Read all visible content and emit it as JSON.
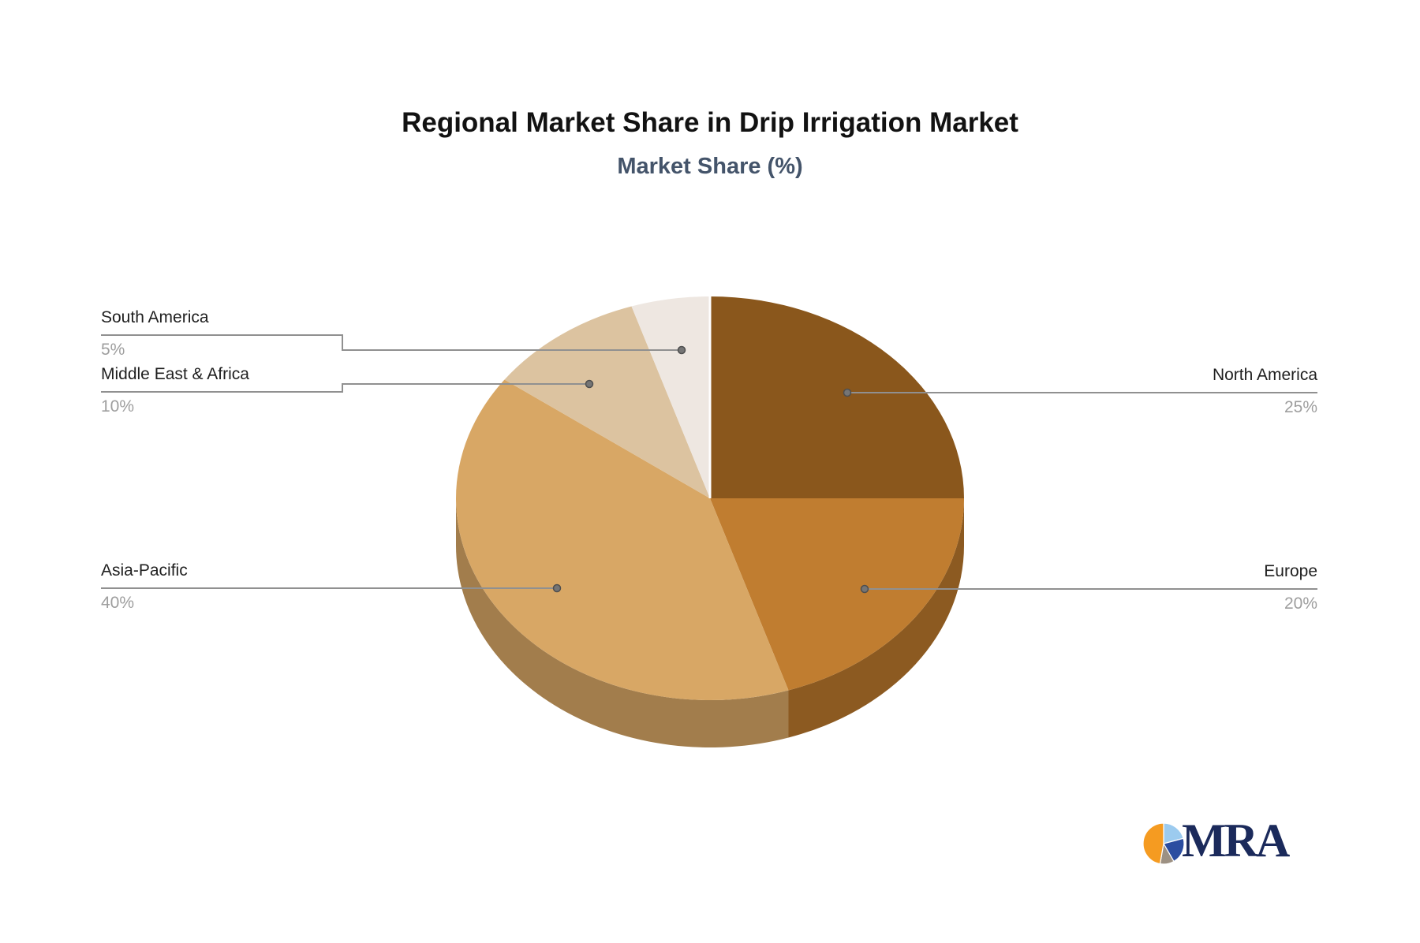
{
  "chart_data": {
    "type": "pie",
    "style": "3d",
    "title": "Regional Market Share in Drip Irrigation Market",
    "subtitle": "Market Share (%)",
    "unit": "%",
    "direction": "clockwise",
    "start_angle_deg": 0,
    "legend_position": "none",
    "background": "#ffffff",
    "slices": [
      {
        "label": "North America",
        "value": 25,
        "pct": "25%",
        "color": "#8A571C",
        "side_color": "#8C5A21"
      },
      {
        "label": "Europe",
        "value": 20,
        "pct": "20%",
        "color": "#C07D30",
        "side_color": "#8C5A21"
      },
      {
        "label": "Asia-Pacific",
        "value": 40,
        "pct": "40%",
        "color": "#D8A765",
        "side_color": "#A27D4C"
      },
      {
        "label": "Middle East & Africa",
        "value": 10,
        "pct": "10%",
        "color": "#DCC3A0",
        "side_color": "#B09B7C"
      },
      {
        "label": "South America",
        "value": 5,
        "pct": "5%",
        "color": "#EEE7E1",
        "side_color": "#CCC0B5"
      }
    ],
    "label_color": "#1F1F1F",
    "value_color": "#9E9E9E",
    "connector_color": "#909090",
    "connector_dot_color": "#757575"
  },
  "logo": {
    "text": "MRA",
    "text_color": "#1B2A5B",
    "pie_icon_colors": [
      "#9CCBEF",
      "#2B4DA0",
      "#9D9183",
      "#F59B21"
    ]
  }
}
